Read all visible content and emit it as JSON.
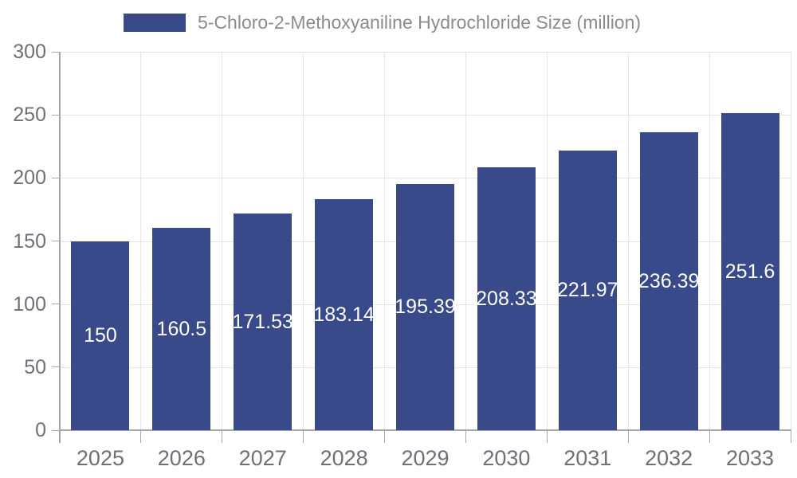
{
  "legend": {
    "series_label": "5-Chloro-2-Methoxyaniline Hydrochloride Size (million)"
  },
  "chart_data": {
    "type": "bar",
    "title": "5-Chloro-2-Methoxyaniline Hydrochloride Size (million)",
    "categories": [
      "2025",
      "2026",
      "2027",
      "2028",
      "2029",
      "2030",
      "2031",
      "2032",
      "2033"
    ],
    "values": [
      150,
      160.5,
      171.53,
      183.14,
      195.39,
      208.33,
      221.97,
      236.39,
      251.6
    ],
    "value_labels": [
      "150",
      "160.5",
      "171.53",
      "183.14",
      "195.39",
      "208.33",
      "221.97",
      "236.39",
      "251.6"
    ],
    "ytick_labels": [
      "0",
      "50",
      "100",
      "150",
      "200",
      "250",
      "300"
    ],
    "xlabel": "",
    "ylabel": "",
    "ylim": [
      0,
      300
    ],
    "ytick_step": 50,
    "grid": true,
    "legend_position": "top-center",
    "colors": {
      "bar": "#384a8a",
      "value_label": "#ffffff",
      "axis_label": "#6e7079",
      "grid_line": "#e6e6e6",
      "axis_line": "#a6a6a6",
      "legend_text": "#8c8c8c",
      "background": "#ffffff"
    }
  }
}
